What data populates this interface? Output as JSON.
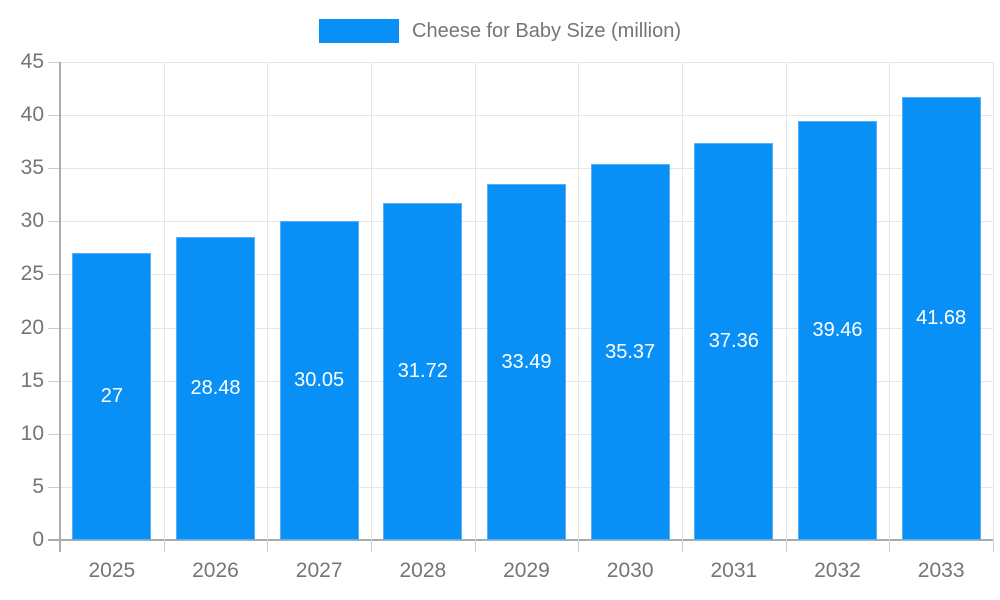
{
  "legend": {
    "label": "Cheese for Baby Size (million)"
  },
  "chart_data": {
    "type": "bar",
    "title": "Cheese for Baby Size (million)",
    "categories": [
      "2025",
      "2026",
      "2027",
      "2028",
      "2029",
      "2030",
      "2031",
      "2032",
      "2033"
    ],
    "values": [
      27,
      28.48,
      30.05,
      31.72,
      33.49,
      35.37,
      37.36,
      39.46,
      41.68
    ],
    "series_name": "Cheese for Baby Size (million)",
    "xlabel": "",
    "ylabel": "",
    "ylim": [
      0,
      45
    ],
    "yticks": [
      0,
      5,
      10,
      15,
      20,
      25,
      30,
      35,
      40,
      45
    ],
    "grid": true,
    "legend_position": "top",
    "value_labels": "inside-center-white"
  },
  "colors": {
    "bar": "#0990F6",
    "bar_border": "#5AB0F7",
    "axis_line": "#ababab",
    "grid_line": "#e6e6e6",
    "tick": "#cccccc",
    "axis_text": "#757575",
    "legend_text": "#757575",
    "background": "#ffffff",
    "value_text": "#ffffff"
  }
}
